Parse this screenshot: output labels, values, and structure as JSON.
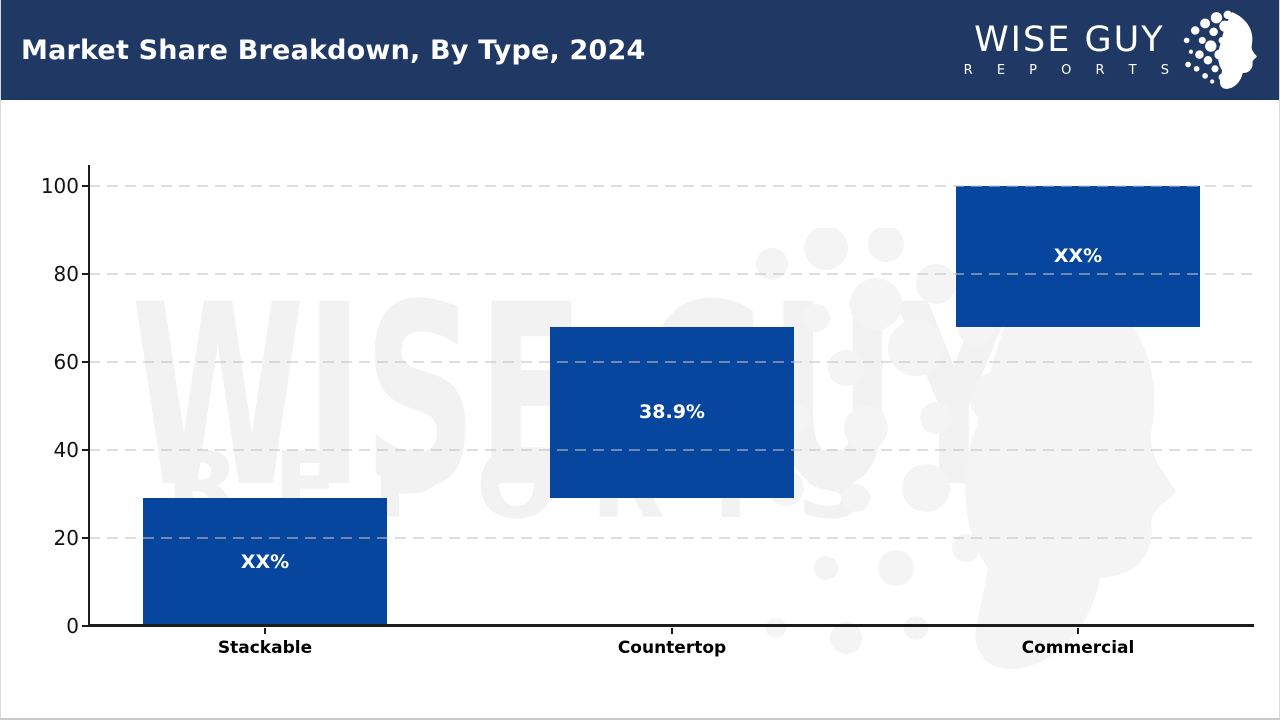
{
  "header": {
    "title": "Market Share Breakdown, By Type, 2024",
    "bg_color": "#1f3864",
    "logo": {
      "line1": "WISE GUY",
      "line2": "R E P O R T S"
    }
  },
  "watermark": {
    "line1": "WISE GUY",
    "line2": "R E P O R T S"
  },
  "chart_data": {
    "type": "bar",
    "variant": "floating-segment-waterfall",
    "title": "Market Share Breakdown, By Type, 2024",
    "categories": [
      "Stackable",
      "Countertop",
      "Commercial"
    ],
    "bars": [
      {
        "category": "Stackable",
        "start": 0,
        "end": 29.1,
        "label": "XX%"
      },
      {
        "category": "Countertop",
        "start": 29.1,
        "end": 68.0,
        "label": "38.9%"
      },
      {
        "category": "Commercial",
        "start": 68.0,
        "end": 100.0,
        "label": "XX%"
      }
    ],
    "y_ticks": [
      0,
      20,
      40,
      60,
      80,
      100
    ],
    "ylim": [
      0,
      105
    ],
    "xlabel": "",
    "ylabel": "",
    "grid": "dashed-horizontal",
    "legend": "none",
    "bar_color": "#07469f",
    "bar_label_color": "#ffffff",
    "axis_color": "#1c1c1c"
  }
}
